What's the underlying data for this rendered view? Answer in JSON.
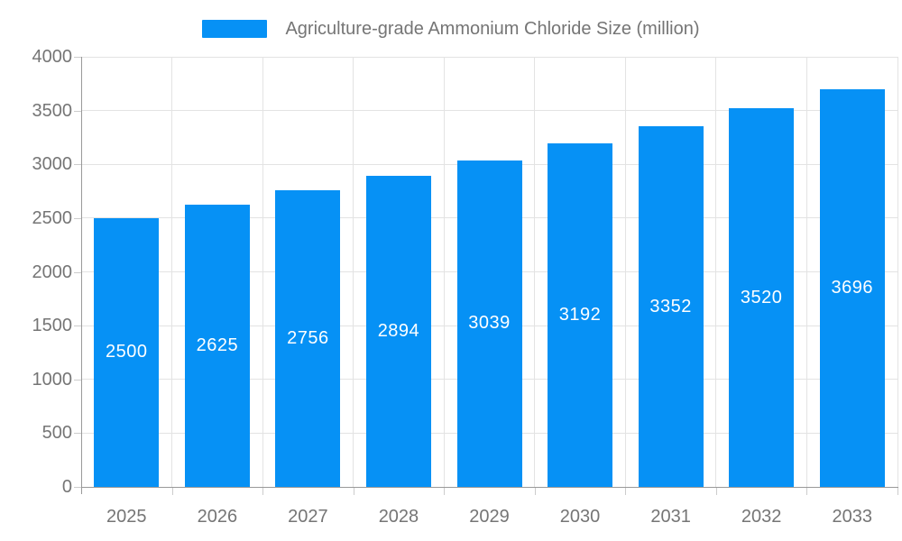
{
  "chart_data": {
    "type": "bar",
    "title": "",
    "legend": "Agriculture-grade Ammonium Chloride Size (million)",
    "legend_position": "top",
    "categories": [
      "2025",
      "2026",
      "2027",
      "2028",
      "2029",
      "2030",
      "2031",
      "2032",
      "2033"
    ],
    "values": [
      2500,
      2625,
      2756,
      2894,
      3039,
      3192,
      3352,
      3520,
      3696
    ],
    "xlabel": "",
    "ylabel": "",
    "ylim": [
      0,
      4000
    ],
    "yticks": [
      0,
      500,
      1000,
      1500,
      2000,
      2500,
      3000,
      3500,
      4000
    ],
    "grid": true,
    "colors": {
      "bar": "#0691f5",
      "grid_line": "#e3e3e3",
      "axis_line": "#999999",
      "tick": "#cccccc",
      "axis_text": "#757575",
      "legend_text": "#757575",
      "bar_label": "#ffffff",
      "background": "#ffffff"
    }
  }
}
